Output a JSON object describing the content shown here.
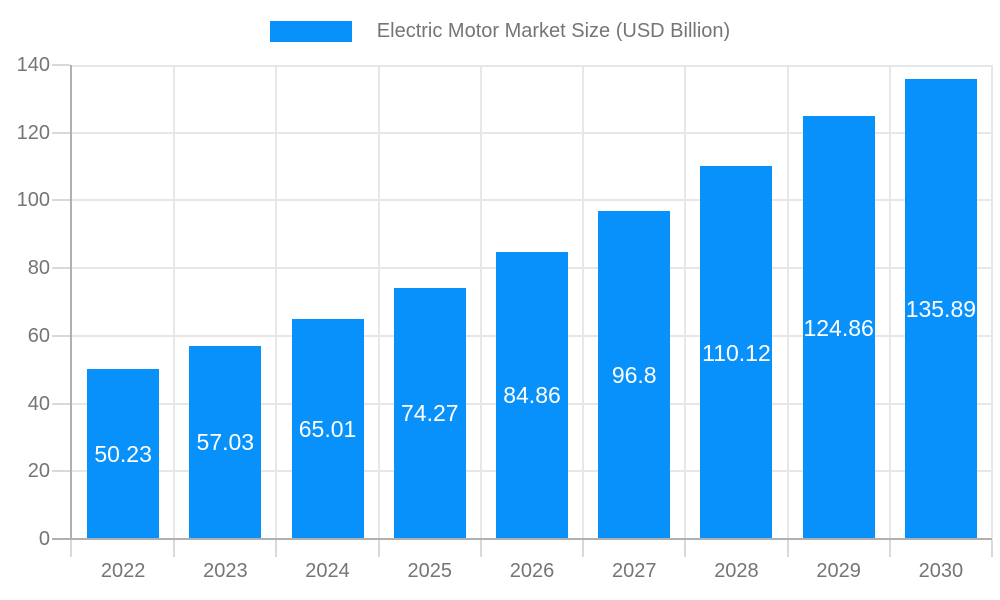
{
  "chart_data": {
    "type": "bar",
    "title": "Electric Motor Market Size (USD Billion)",
    "categories": [
      "2022",
      "2023",
      "2024",
      "2025",
      "2026",
      "2027",
      "2028",
      "2029",
      "2030"
    ],
    "values": [
      50.23,
      57.03,
      65.01,
      74.27,
      84.86,
      96.8,
      110.12,
      124.86,
      135.89
    ],
    "value_labels": [
      "50.23",
      "57.03",
      "65.01",
      "74.27",
      "84.86",
      "96.8",
      "110.12",
      "124.86",
      "135.89"
    ],
    "series_name": "Electric Motor Market Size (USD Billion)",
    "xlabel": "",
    "ylabel": "",
    "ylim": [
      0,
      140
    ],
    "yticks": [
      0,
      20,
      40,
      60,
      80,
      100,
      120,
      140
    ],
    "grid": true,
    "legend_position": "top-center",
    "colors": {
      "bar": "#0991fb",
      "bar_label": "#ffffff",
      "axis_text": "#757575",
      "legend_text": "#757575",
      "axis_line": "#b0b0b0",
      "grid_line": "#e7e7e7",
      "tick_line": "#d9d9d9",
      "background": "#ffffff"
    }
  }
}
